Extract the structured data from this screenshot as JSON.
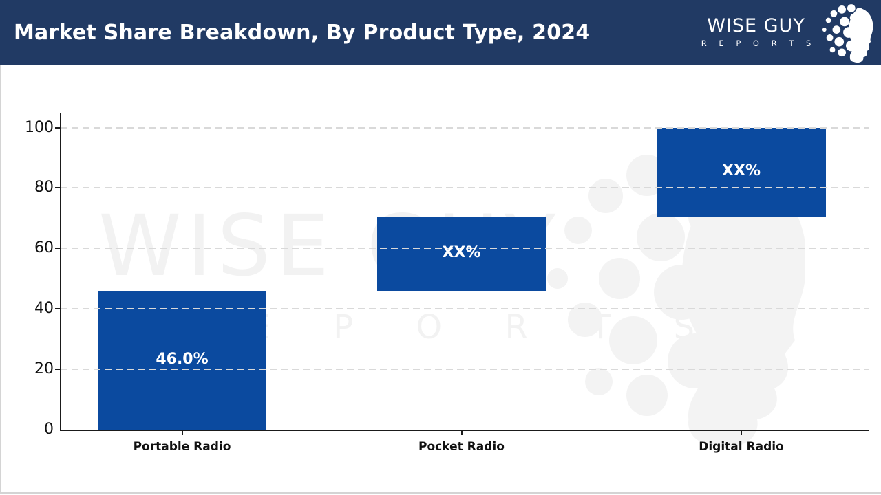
{
  "header": {
    "title": "Market Share Breakdown, By Product Type, 2024",
    "bg_color": "#213A64",
    "logo": {
      "line1": "WISE GUY",
      "line2": "R E P O R T S"
    }
  },
  "watermark": {
    "line1": "WISE GUY",
    "line2": "R E P O R T S"
  },
  "chart_data": {
    "type": "bar",
    "subtype": "waterfall-floating-bars",
    "title": "Market Share Breakdown, By Product Type, 2024",
    "categories": [
      "Portable Radio",
      "Pocket Radio",
      "Digital Radio"
    ],
    "segments": [
      {
        "category": "Portable Radio",
        "start": 0,
        "end": 46,
        "label": "46.0%"
      },
      {
        "category": "Pocket Radio",
        "start": 46,
        "end": 70.6,
        "label": "XX%"
      },
      {
        "category": "Digital Radio",
        "start": 70.6,
        "end": 100,
        "label": "XX%"
      }
    ],
    "y_ticks": [
      0,
      20,
      40,
      60,
      80,
      100
    ],
    "ylim": [
      0,
      105
    ],
    "xlabel": "",
    "ylabel": "",
    "grid": "horizontal-dashed",
    "legend": "none",
    "bar_color": "#0B4A9F",
    "bar_label_color": "#FFFFFF",
    "grid_color": "#D9D9D9",
    "axis_color": "#1A1A1A",
    "header_bg_color": "#213A64",
    "watermark_color": "#F2F2F2"
  }
}
